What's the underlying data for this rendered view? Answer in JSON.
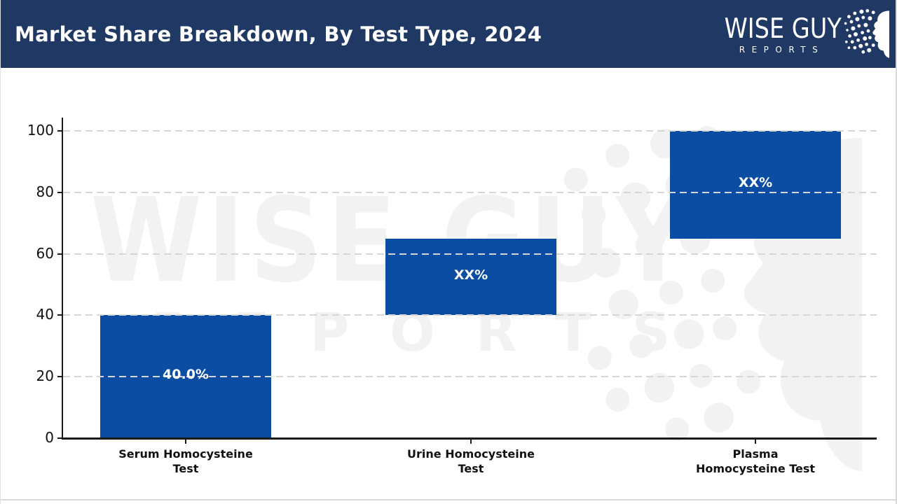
{
  "header": {
    "title": "Market Share Breakdown, By Test Type, 2024",
    "logo": {
      "line1": "WISE GUY",
      "line2": "REPORTS"
    }
  },
  "watermark": {
    "line1": "WISE GUY",
    "line2": "REPORTS"
  },
  "colors": {
    "header_bg": "#1F3864",
    "bar": "#0B4DA2",
    "grid": "#D6D6D6",
    "axis": "#1A1A1A",
    "tick_label": "#111111",
    "value_label": "#FFFFFF",
    "watermark": "#F2F2F2"
  },
  "chart_data": {
    "type": "bar",
    "subtype": "waterfall",
    "title": "Market Share Breakdown, By Test Type, 2024",
    "categories": [
      [
        "Serum Homocysteine",
        "Test"
      ],
      [
        "Urine Homocysteine",
        "Test"
      ],
      [
        "Plasma",
        "Homocysteine Test"
      ]
    ],
    "segments": [
      {
        "start": 0,
        "end": 40,
        "value": 40,
        "label": "40.0%"
      },
      {
        "start": 40,
        "end": 65,
        "value": 25,
        "label": "XX%"
      },
      {
        "start": 65,
        "end": 100,
        "value": 35,
        "label": "XX%"
      }
    ],
    "yticks": [
      0,
      20,
      40,
      60,
      80,
      100
    ],
    "ylim": [
      0,
      104
    ],
    "xlabel": "",
    "ylabel": "",
    "grid": "horizontal-dashed",
    "legend": "none",
    "bar_color": "#0B4DA2"
  }
}
